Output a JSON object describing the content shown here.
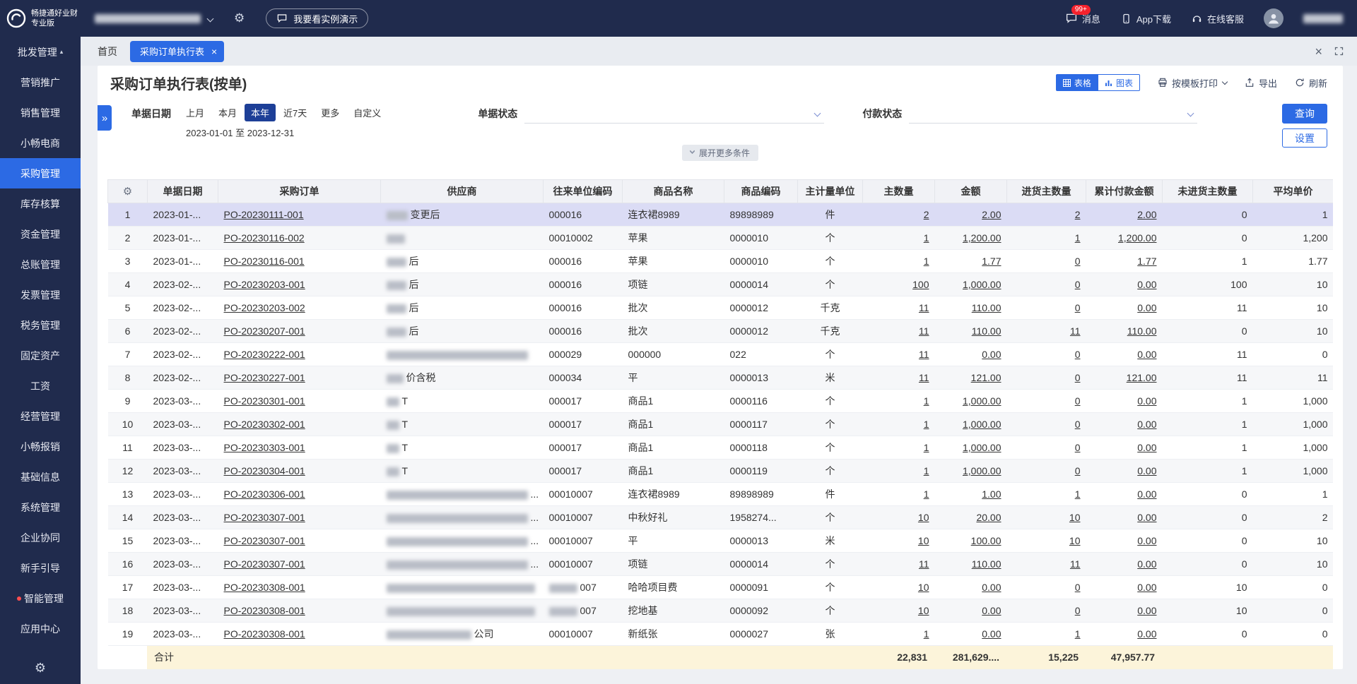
{
  "icons": {
    "gear": "⚙",
    "collapse": "»",
    "close": "×",
    "caret_up": "▴"
  },
  "topbar": {
    "logo_line1": "畅捷通好业财",
    "logo_line2": "专业版",
    "demo_label": "我要看实例演示",
    "messages_label": "消息",
    "messages_badge": "99+",
    "app_download_label": "App下载",
    "support_label": "在线客服"
  },
  "sidebar": {
    "items": [
      {
        "label": "批发管理",
        "arrow": true
      },
      {
        "label": "营销推广"
      },
      {
        "label": "销售管理"
      },
      {
        "label": "小畅电商"
      },
      {
        "label": "采购管理",
        "active": true
      },
      {
        "label": "库存核算"
      },
      {
        "label": "资金管理"
      },
      {
        "label": "总账管理"
      },
      {
        "label": "发票管理"
      },
      {
        "label": "税务管理"
      },
      {
        "label": "固定资产"
      },
      {
        "label": "工资"
      },
      {
        "label": "经营管理"
      },
      {
        "label": "小畅报销"
      },
      {
        "label": "基础信息"
      },
      {
        "label": "系统管理"
      },
      {
        "label": "企业协同"
      },
      {
        "label": "新手引导"
      },
      {
        "label": "智能管理",
        "dot": true
      },
      {
        "label": "应用中心"
      }
    ]
  },
  "tabs": {
    "home": "首页",
    "active": "采购订单执行表"
  },
  "page": {
    "title": "采购订单执行表(按单)",
    "view_table": "表格",
    "view_chart": "图表",
    "print_label": "按模板打印",
    "export_label": "导出",
    "refresh_label": "刷新"
  },
  "filters": {
    "date_label": "单据日期",
    "date_options": [
      "上月",
      "本月",
      "本年",
      "近7天",
      "更多",
      "自定义"
    ],
    "date_selected": "本年",
    "date_range": "2023-01-01 至 2023-12-31",
    "status_label": "单据状态",
    "payment_label": "付款状态",
    "query_label": "查询",
    "settings_label": "设置",
    "expand_more": "展开更多条件"
  },
  "table": {
    "headers": [
      "单据日期",
      "采购订单",
      "供应商",
      "往来单位编码",
      "商品名称",
      "商品编码",
      "主计量单位",
      "主数量",
      "金额",
      "进货主数量",
      "累计付款金额",
      "未进货主数量",
      "平均单价"
    ],
    "rows": [
      {
        "num": "1",
        "date": "2023-01-...",
        "po": "PO-20230111-001",
        "sup_blur": 30,
        "sup": "变更后",
        "code": "000016",
        "product": "连衣裙8989",
        "pcode": "89898989",
        "unit": "件",
        "qty": "2",
        "amount": "2.00",
        "in_qty": "2",
        "paid": "2.00",
        "out_qty": "0",
        "avg": "1",
        "selected": true
      },
      {
        "num": "2",
        "date": "2023-01-...",
        "po": "PO-20230116-002",
        "sup_blur": 26,
        "sup": "",
        "code": "00010002",
        "product": "苹果",
        "pcode": "0000010",
        "unit": "个",
        "qty": "1",
        "amount": "1,200.00",
        "in_qty": "1",
        "paid": "1,200.00",
        "out_qty": "0",
        "avg": "1,200"
      },
      {
        "num": "3",
        "date": "2023-01-...",
        "po": "PO-20230116-001",
        "sup_blur": 28,
        "sup": "后",
        "code": "000016",
        "product": "苹果",
        "pcode": "0000010",
        "unit": "个",
        "qty": "1",
        "amount": "1.77",
        "in_qty": "0",
        "paid": "1.77",
        "out_qty": "1",
        "avg": "1.77"
      },
      {
        "num": "4",
        "date": "2023-02-...",
        "po": "PO-20230203-001",
        "sup_blur": 28,
        "sup": "后",
        "code": "000016",
        "product": "项链",
        "pcode": "0000014",
        "unit": "个",
        "qty": "100",
        "amount": "1,000.00",
        "in_qty": "0",
        "paid": "0.00",
        "out_qty": "100",
        "avg": "10"
      },
      {
        "num": "5",
        "date": "2023-02-...",
        "po": "PO-20230203-002",
        "sup_blur": 28,
        "sup": "后",
        "code": "000016",
        "product": "批次",
        "pcode": "0000012",
        "unit": "千克",
        "qty": "11",
        "amount": "110.00",
        "in_qty": "0",
        "paid": "0.00",
        "out_qty": "11",
        "avg": "10"
      },
      {
        "num": "6",
        "date": "2023-02-...",
        "po": "PO-20230207-001",
        "sup_blur": 28,
        "sup": "后",
        "code": "000016",
        "product": "批次",
        "pcode": "0000012",
        "unit": "千克",
        "qty": "11",
        "amount": "110.00",
        "in_qty": "11",
        "paid": "110.00",
        "out_qty": "0",
        "avg": "10"
      },
      {
        "num": "7",
        "date": "2023-02-...",
        "po": "PO-20230222-001",
        "sup_blur": 200,
        "sup": "",
        "code": "000029",
        "product": "000000",
        "pcode": "022",
        "unit": "个",
        "qty": "11",
        "amount": "0.00",
        "in_qty": "0",
        "paid": "0.00",
        "out_qty": "11",
        "avg": "0"
      },
      {
        "num": "8",
        "date": "2023-02-...",
        "po": "PO-20230227-001",
        "sup_blur": 24,
        "sup": "价含税",
        "code": "000034",
        "product": "平",
        "pcode": "0000013",
        "unit": "米",
        "qty": "11",
        "amount": "121.00",
        "in_qty": "0",
        "paid": "121.00",
        "out_qty": "11",
        "avg": "11"
      },
      {
        "num": "9",
        "date": "2023-03-...",
        "po": "PO-20230301-001",
        "sup_blur": 18,
        "sup": "T",
        "code": "000017",
        "product": "商品1",
        "pcode": "0000116",
        "unit": "个",
        "qty": "1",
        "amount": "1,000.00",
        "in_qty": "0",
        "paid": "0.00",
        "out_qty": "1",
        "avg": "1,000"
      },
      {
        "num": "10",
        "date": "2023-03-...",
        "po": "PO-20230302-001",
        "sup_blur": 18,
        "sup": "T",
        "code": "000017",
        "product": "商品1",
        "pcode": "0000117",
        "unit": "个",
        "qty": "1",
        "amount": "1,000.00",
        "in_qty": "0",
        "paid": "0.00",
        "out_qty": "1",
        "avg": "1,000"
      },
      {
        "num": "11",
        "date": "2023-03-...",
        "po": "PO-20230303-001",
        "sup_blur": 18,
        "sup": "T",
        "code": "000017",
        "product": "商品1",
        "pcode": "0000118",
        "unit": "个",
        "qty": "1",
        "amount": "1,000.00",
        "in_qty": "0",
        "paid": "0.00",
        "out_qty": "1",
        "avg": "1,000"
      },
      {
        "num": "12",
        "date": "2023-03-...",
        "po": "PO-20230304-001",
        "sup_blur": 18,
        "sup": "T",
        "code": "000017",
        "product": "商品1",
        "pcode": "0000119",
        "unit": "个",
        "qty": "1",
        "amount": "1,000.00",
        "in_qty": "0",
        "paid": "0.00",
        "out_qty": "1",
        "avg": "1,000"
      },
      {
        "num": "13",
        "date": "2023-03-...",
        "po": "PO-20230306-001",
        "sup_blur": 200,
        "sup": "...",
        "code": "00010007",
        "product": "连衣裙8989",
        "pcode": "89898989",
        "unit": "件",
        "qty": "1",
        "amount": "1.00",
        "in_qty": "1",
        "paid": "0.00",
        "out_qty": "0",
        "avg": "1"
      },
      {
        "num": "14",
        "date": "2023-03-...",
        "po": "PO-20230307-001",
        "sup_blur": 200,
        "sup": "...",
        "code": "00010007",
        "product": "中秋好礼",
        "pcode": "1958274...",
        "unit": "个",
        "qty": "10",
        "amount": "20.00",
        "in_qty": "10",
        "paid": "0.00",
        "out_qty": "0",
        "avg": "2"
      },
      {
        "num": "15",
        "date": "2023-03-...",
        "po": "PO-20230307-001",
        "sup_blur": 200,
        "sup": "...",
        "code": "00010007",
        "product": "平",
        "pcode": "0000013",
        "unit": "米",
        "qty": "10",
        "amount": "100.00",
        "in_qty": "10",
        "paid": "0.00",
        "out_qty": "0",
        "avg": "10"
      },
      {
        "num": "16",
        "date": "2023-03-...",
        "po": "PO-20230307-001",
        "sup_blur": 200,
        "sup": "...",
        "code": "00010007",
        "product": "项链",
        "pcode": "0000014",
        "unit": "个",
        "qty": "11",
        "amount": "110.00",
        "in_qty": "11",
        "paid": "0.00",
        "out_qty": "0",
        "avg": "10"
      },
      {
        "num": "17",
        "date": "2023-03-...",
        "po": "PO-20230308-001",
        "sup_blur": 210,
        "sup": "",
        "code_blur": 40,
        "code": "007",
        "product": "哈哈项目费",
        "pcode": "0000091",
        "unit": "个",
        "qty": "10",
        "amount": "0.00",
        "in_qty": "0",
        "paid": "0.00",
        "out_qty": "10",
        "avg": "0"
      },
      {
        "num": "18",
        "date": "2023-03-...",
        "po": "PO-20230308-001",
        "sup_blur": 210,
        "sup": "",
        "code_blur": 40,
        "code": "007",
        "product": "挖地基",
        "pcode": "0000092",
        "unit": "个",
        "qty": "10",
        "amount": "0.00",
        "in_qty": "0",
        "paid": "0.00",
        "out_qty": "10",
        "avg": "0"
      },
      {
        "num": "19",
        "date": "2023-03-...",
        "po": "PO-20230308-001",
        "sup_blur": 120,
        "sup": "公司",
        "code": "00010007",
        "product": "新纸张",
        "pcode": "0000027",
        "unit": "张",
        "qty": "1",
        "amount": "0.00",
        "in_qty": "1",
        "paid": "0.00",
        "out_qty": "0",
        "avg": "0"
      }
    ],
    "total": {
      "label": "合计",
      "qty": "22,831",
      "amount": "281,629....",
      "in_qty": "15,225",
      "paid": "47,957.77"
    }
  }
}
